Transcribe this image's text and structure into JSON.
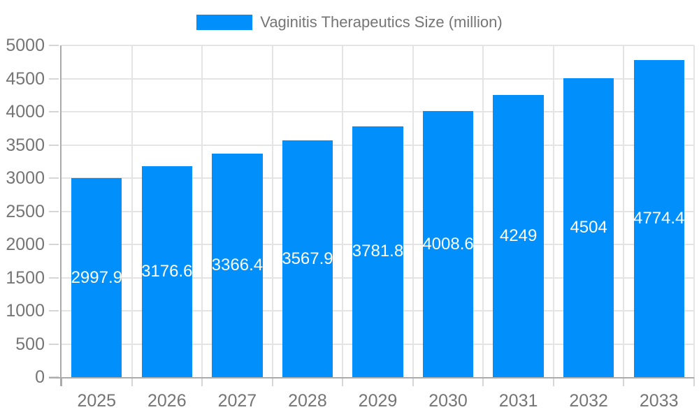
{
  "chart_data": {
    "type": "bar",
    "title": "Vaginitis Therapeutics Size (million)",
    "legend": {
      "label": "Vaginitis Therapeutics Size (million)",
      "position": "top"
    },
    "categories": [
      "2025",
      "2026",
      "2027",
      "2028",
      "2029",
      "2030",
      "2031",
      "2032",
      "2033"
    ],
    "series": [
      {
        "name": "Vaginitis Therapeutics Size (million)",
        "values": [
          2997.9,
          3176.6,
          3366.4,
          3567.9,
          3781.8,
          4008.6,
          4249,
          4504,
          4774.4
        ],
        "value_labels": [
          "2997.9",
          "3176.6",
          "3366.4",
          "3567.9",
          "3781.8",
          "4008.6",
          "4249",
          "4504",
          "4774.4"
        ]
      }
    ],
    "xlabel": "",
    "ylabel": "",
    "ylim": [
      0,
      5000
    ],
    "ytick_step": 500,
    "yticks": [
      "0",
      "500",
      "1000",
      "1500",
      "2000",
      "2500",
      "3000",
      "3500",
      "4000",
      "4500",
      "5000"
    ],
    "grid": true,
    "legend_position": "top"
  },
  "colors": {
    "bar": "#008FFB",
    "gridline": "#e4e4e4",
    "axis": "#ababab",
    "tick": "#d6d6d6",
    "axis_label": "#757575",
    "legend_text": "#757575",
    "value_label": "#ffffff",
    "background": "#ffffff"
  }
}
